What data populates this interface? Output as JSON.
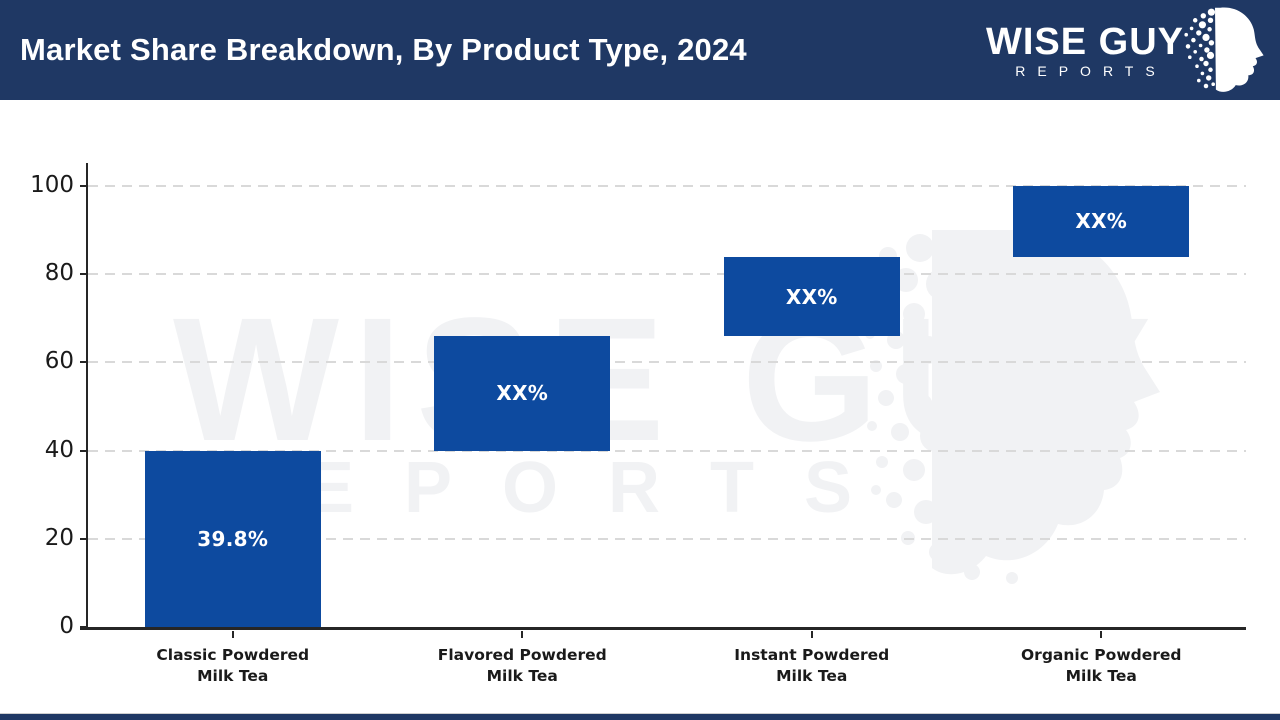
{
  "header": {
    "title": "Market Share Breakdown, By Product Type, 2024",
    "logo": {
      "wordmark": "WISE GUY",
      "wordmark_sub": "REPORTS"
    }
  },
  "watermark": {
    "line1": "WISE GUY",
    "line2": "REPORTS"
  },
  "colors": {
    "header_bg": "#1F3864",
    "bar": "#0D4A9F",
    "grid": "#D9D9D9",
    "axis": "#262626",
    "ink": "#1A1A1A",
    "watermark": "#F1F2F4",
    "bar_label": "#FFFFFF",
    "hairline": "#CFCFCF"
  },
  "chart_data": {
    "type": "bar",
    "subtype": "floating-segment-waterfall",
    "title": "Market Share Breakdown, By Product Type, 2024",
    "categories": [
      "Classic Powdered\nMilk Tea",
      "Flavored Powdered\nMilk Tea",
      "Instant Powdered\nMilk Tea",
      "Organic Powdered\nMilk Tea"
    ],
    "bars": [
      {
        "category": "Classic Powdered Milk Tea",
        "start": 0,
        "end": 39.8,
        "label": "39.8%"
      },
      {
        "category": "Flavored Powdered Milk Tea",
        "start": 40,
        "end": 66,
        "label": "XX%"
      },
      {
        "category": "Instant Powdered Milk Tea",
        "start": 66,
        "end": 83.8,
        "label": "XX%"
      },
      {
        "category": "Organic Powdered Milk Tea",
        "start": 84,
        "end": 100,
        "label": "XX%"
      }
    ],
    "xlabel": "",
    "ylabel": "",
    "ylim": [
      0,
      100
    ],
    "yticks": [
      0,
      20,
      40,
      60,
      80,
      100
    ],
    "grid": "horizontal dashed",
    "legend": false
  }
}
